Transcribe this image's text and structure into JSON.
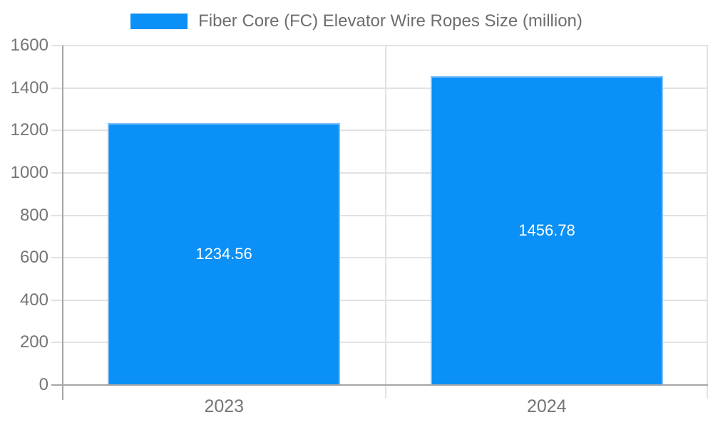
{
  "legend": {
    "label": "Fiber Core (FC) Elevator Wire Ropes Size (million)"
  },
  "colors": {
    "bar_fill": "#0a90f6",
    "bar_border": "#7cc0fa",
    "grid": "#e2e2e2",
    "axis": "#a6a6a6",
    "tick_text": "#757575",
    "legend_text": "#6e6e6e",
    "value_text": "#ffffff"
  },
  "chart_data": {
    "type": "bar",
    "title": "Fiber Core (FC) Elevator Wire Ropes Size (million)",
    "categories": [
      "2023",
      "2024"
    ],
    "values": [
      1234.56,
      1456.78
    ],
    "value_labels": [
      "1234.56",
      "1456.78"
    ],
    "xlabel": "",
    "ylabel": "",
    "ylim": [
      0,
      1600
    ],
    "ytick_step": 200,
    "yticks": [
      0,
      200,
      400,
      600,
      800,
      1000,
      1200,
      1400,
      1600
    ],
    "grid": true,
    "legend_position": "top",
    "bar_label_position": "center"
  }
}
